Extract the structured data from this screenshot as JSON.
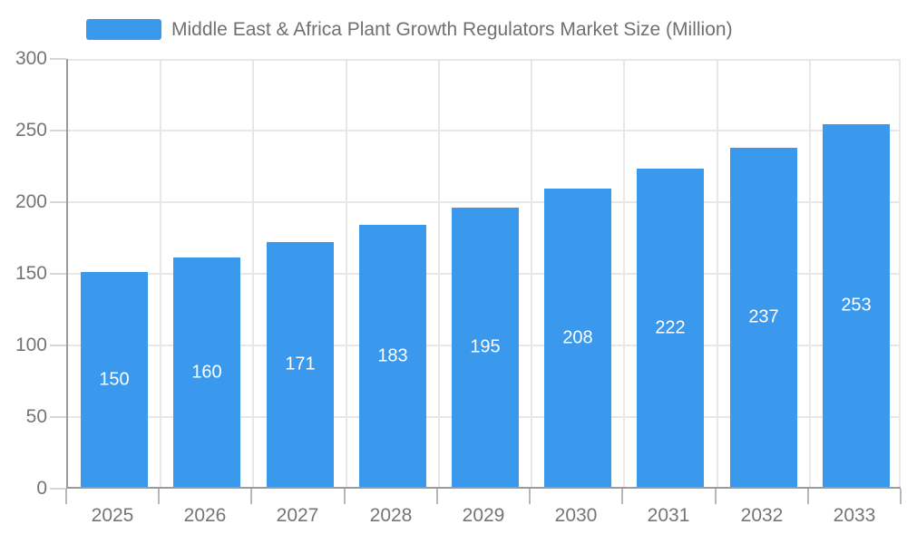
{
  "chart_data": {
    "type": "bar",
    "title": "Middle East & Africa Plant Growth Regulators Market Size (Million)",
    "categories": [
      "2025",
      "2026",
      "2027",
      "2028",
      "2029",
      "2030",
      "2031",
      "2032",
      "2033"
    ],
    "values": [
      150,
      160,
      171,
      183,
      195,
      208,
      222,
      237,
      253
    ],
    "value_labels_shown": true,
    "xlabel": "",
    "ylabel": "",
    "ylim": [
      0,
      300
    ],
    "yticks": [
      0,
      50,
      100,
      150,
      200,
      250,
      300
    ],
    "grid": "horizontal-and-vertical",
    "legend_position": "top-left",
    "colors": {
      "bar": "#3b99ed",
      "value_label": "#ffffff",
      "axis_text": "#757575",
      "title_text": "#707070",
      "grid_line": "#e7e7e7",
      "axis_line": "#9b9b9b",
      "tick_y": "#d6d6d6",
      "tick_x": "#b7b7b7",
      "background": "#ffffff"
    }
  }
}
